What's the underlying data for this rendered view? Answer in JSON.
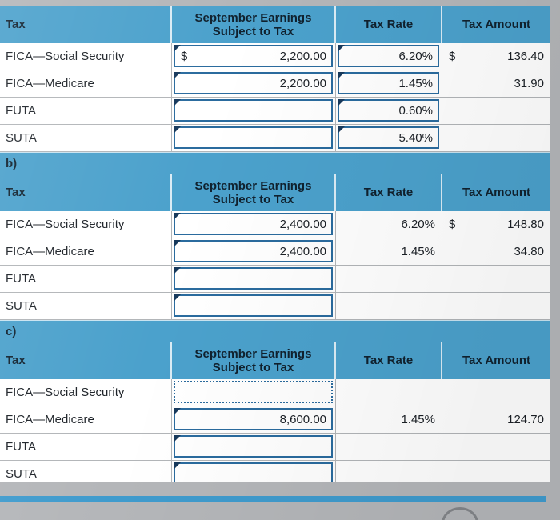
{
  "colors": {
    "band": "#4ba1cc",
    "header_text": "#10212e",
    "text": "#1b2026",
    "grid": "#b2b5b8",
    "input_border": "#2a6b9e",
    "triangle": "#17395c",
    "photo_bg": "#b4b6b9",
    "bottom_line": "#3f9bcd"
  },
  "header": {
    "col_tax": "Tax",
    "col_earnings": "September Earnings Subject to Tax",
    "col_rate": "Tax Rate",
    "col_amount": "Tax Amount"
  },
  "bands": {
    "b": "b)",
    "c": "c)"
  },
  "sections": [
    {
      "rows": [
        {
          "label": "FICA—Social Security",
          "earnings_prefix": "$",
          "earnings": "2,200.00",
          "rate": "6.20%",
          "amount_prefix": "$",
          "amount": "136.40"
        },
        {
          "label": "FICA—Medicare",
          "earnings": "2,200.00",
          "rate": "1.45%",
          "amount": "31.90"
        },
        {
          "label": "FUTA",
          "earnings": "",
          "rate": "0.60%",
          "amount": ""
        },
        {
          "label": "SUTA",
          "earnings": "",
          "rate": "5.40%",
          "amount": ""
        }
      ]
    },
    {
      "rows": [
        {
          "label": "FICA—Social Security",
          "earnings": "2,400.00",
          "rate": "6.20%",
          "amount_prefix": "$",
          "amount": "148.80"
        },
        {
          "label": "FICA—Medicare",
          "earnings": "2,400.00",
          "rate": "1.45%",
          "amount": "34.80"
        },
        {
          "label": "FUTA",
          "earnings": "",
          "rate": "",
          "amount": ""
        },
        {
          "label": "SUTA",
          "earnings": "",
          "rate": "",
          "amount": ""
        }
      ]
    },
    {
      "rows": [
        {
          "label": "FICA—Social Security",
          "earnings": "",
          "rate": "",
          "amount": ""
        },
        {
          "label": "FICA—Medicare",
          "earnings": "8,600.00",
          "rate": "1.45%",
          "amount": "124.70"
        },
        {
          "label": "FUTA",
          "earnings": "",
          "rate": "",
          "amount": ""
        },
        {
          "label": "SUTA",
          "earnings": "",
          "rate": "",
          "amount": ""
        }
      ]
    }
  ]
}
